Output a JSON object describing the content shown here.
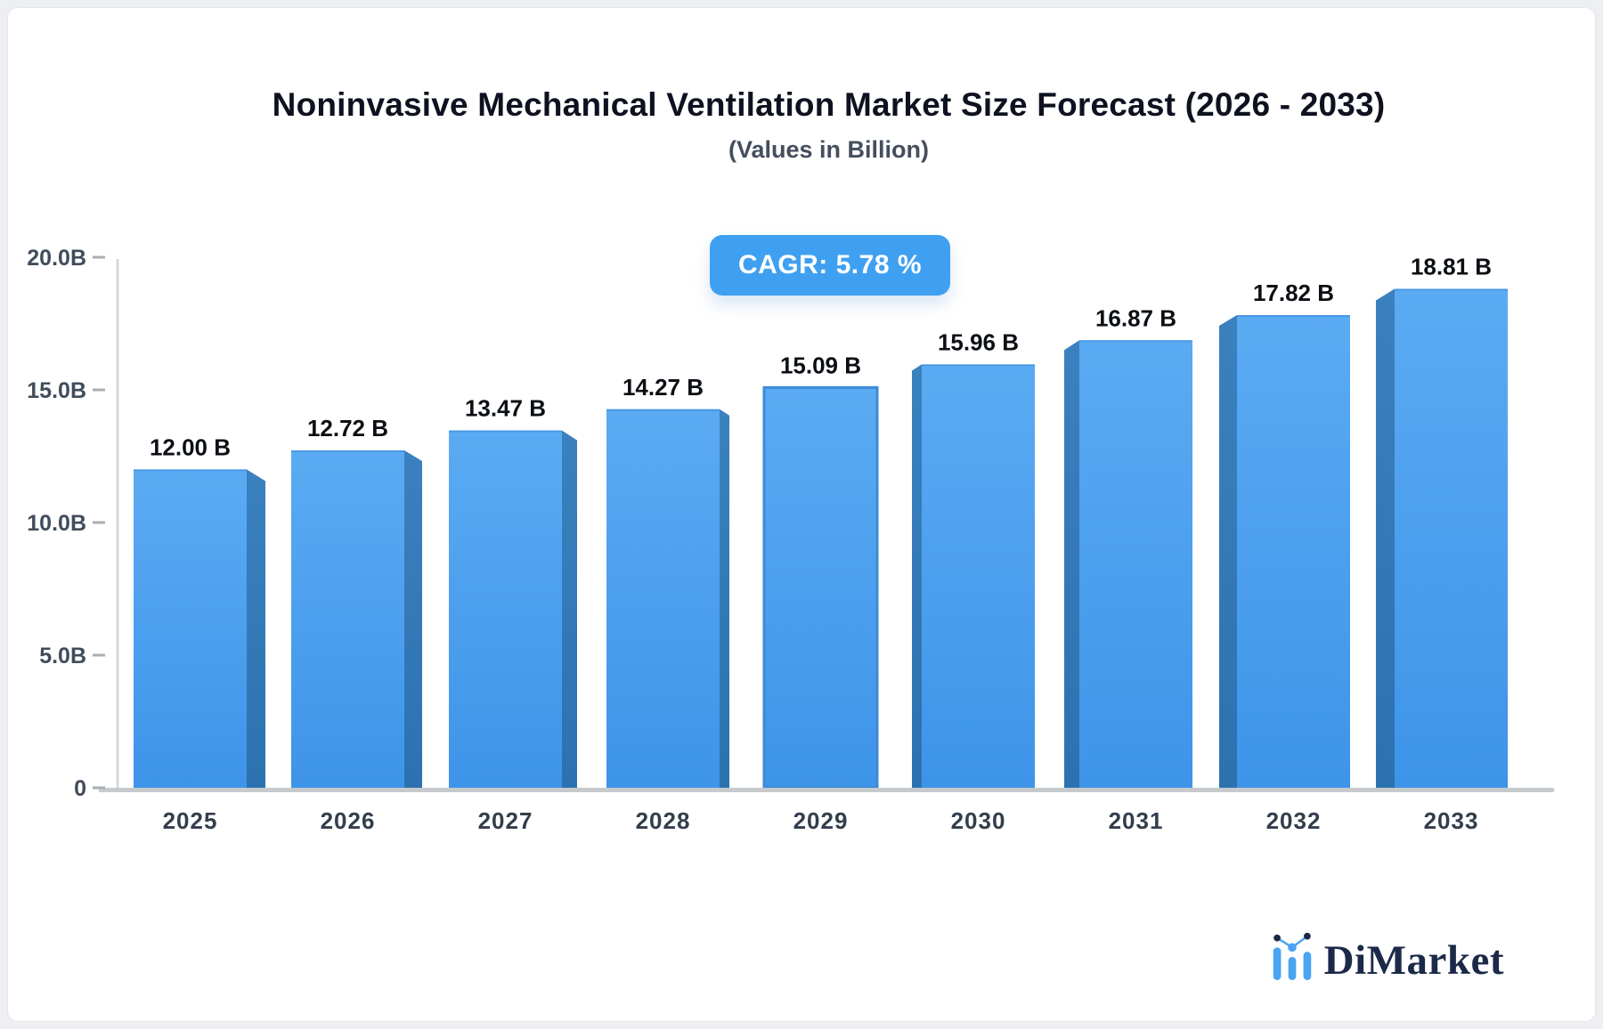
{
  "header": {
    "title": "Noninvasive Mechanical Ventilation Market Size Forecast (2026 - 2033)",
    "subtitle": "(Values in Billion)"
  },
  "badge": {
    "label": "CAGR: 5.78 %",
    "color": "#3fa0f2"
  },
  "chart_data": {
    "type": "bar",
    "title": "Noninvasive Mechanical Ventilation Market Size Forecast (2026 - 2033)",
    "subtitle": "(Values in Billion)",
    "categories": [
      "2025",
      "2026",
      "2027",
      "2028",
      "2029",
      "2030",
      "2031",
      "2032",
      "2033"
    ],
    "values": [
      12.0,
      12.72,
      13.47,
      14.27,
      15.09,
      15.96,
      16.87,
      17.82,
      18.81
    ],
    "value_labels": [
      "12.00 B",
      "12.72 B",
      "13.47 B",
      "14.27 B",
      "15.09 B",
      "15.96 B",
      "16.87 B",
      "17.82 B",
      "18.81 B"
    ],
    "annotation": "CAGR: 5.78 %",
    "ylim": [
      0,
      20
    ],
    "yticks": [
      0,
      5,
      10,
      15,
      20
    ],
    "ytick_labels": [
      "0",
      "5.0B",
      "10.0B",
      "15.0B",
      "20.0B"
    ],
    "grid": false,
    "legend_position": "none",
    "style": "pseudo-3d bars, vanishing point at center bar",
    "colors": {
      "bar_face_top": "#5babf3",
      "bar_face_bottom": "#3e94e9",
      "bar_side_top": "#3b80bf",
      "bar_side_bottom": "#2c72b0",
      "center_bar_outline": "#3c8bd6",
      "axis_line": "#d5d8db",
      "baseline": "#c7cacd",
      "tick": "#a8aeb5"
    }
  },
  "logo": {
    "text": "DiMarket",
    "icon": "mini-bar-chart-icon",
    "icon_bar_color": "#4aa4f2",
    "icon_dot_color": "#1c2948"
  }
}
